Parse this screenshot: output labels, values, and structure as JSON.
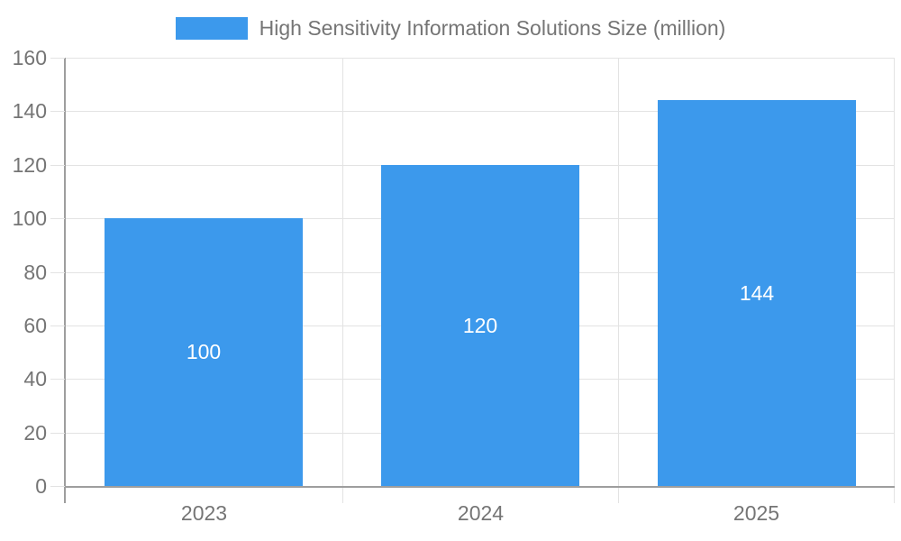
{
  "legend": {
    "label": "High Sensitivity Information Solutions Size (million)"
  },
  "chart_data": {
    "type": "bar",
    "title": "High Sensitivity Information Solutions Size (million)",
    "series_name": "High Sensitivity Information Solutions Size (million)",
    "categories": [
      "2023",
      "2024",
      "2025"
    ],
    "values": [
      100,
      120,
      144
    ],
    "value_labels": [
      "100",
      "120",
      "144"
    ],
    "yticks": [
      0,
      20,
      40,
      60,
      80,
      100,
      120,
      140,
      160
    ],
    "ylim": [
      0,
      160
    ],
    "ytick_step": 20,
    "xlabel": "",
    "ylabel": "",
    "grid": true,
    "legend_position": "top",
    "colors": {
      "bar": "#3C99EC",
      "value_label": "#ffffff",
      "text": "#757575",
      "grid": "#e3e3e3",
      "axis": "#9e9e9e",
      "background": "#ffffff"
    }
  }
}
